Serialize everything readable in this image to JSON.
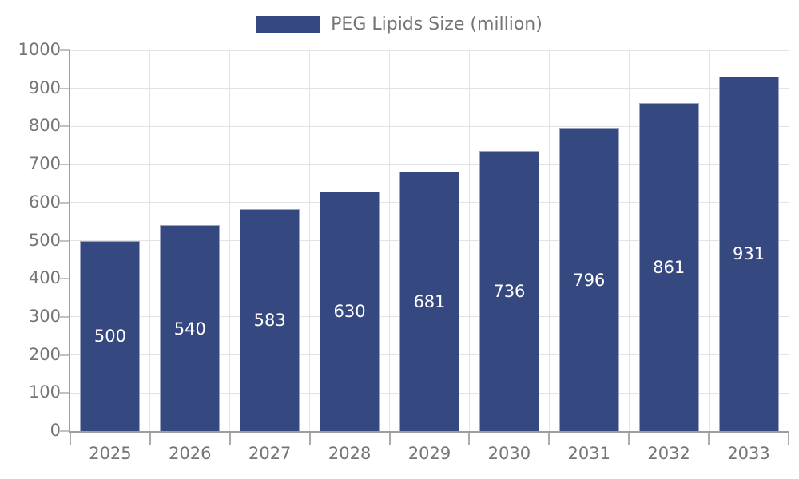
{
  "legend": {
    "label": "PEG Lipids Size (million)"
  },
  "chart_data": {
    "type": "bar",
    "title": "PEG Lipids Size (million)",
    "series_name": "PEG Lipids Size (million)",
    "categories": [
      "2025",
      "2026",
      "2027",
      "2028",
      "2029",
      "2030",
      "2031",
      "2032",
      "2033"
    ],
    "values": [
      500,
      540,
      583,
      630,
      681,
      736,
      796,
      861,
      931
    ],
    "bar_labels": [
      "500",
      "540",
      "583",
      "630",
      "681",
      "736",
      "796",
      "861",
      "931"
    ],
    "xlabel": "",
    "ylabel": "",
    "ylim": [
      0,
      1000
    ],
    "yticks": [
      0,
      100,
      200,
      300,
      400,
      500,
      600,
      700,
      800,
      900,
      1000
    ],
    "grid": true,
    "legend_position": "top",
    "colors": {
      "bar_fill": "#364880",
      "bar_value_text": "#ffffff",
      "axis_line": "#9e9e9e",
      "gridline": "#e3e3e3",
      "axis_text": "#757575",
      "background": "#ffffff"
    }
  }
}
